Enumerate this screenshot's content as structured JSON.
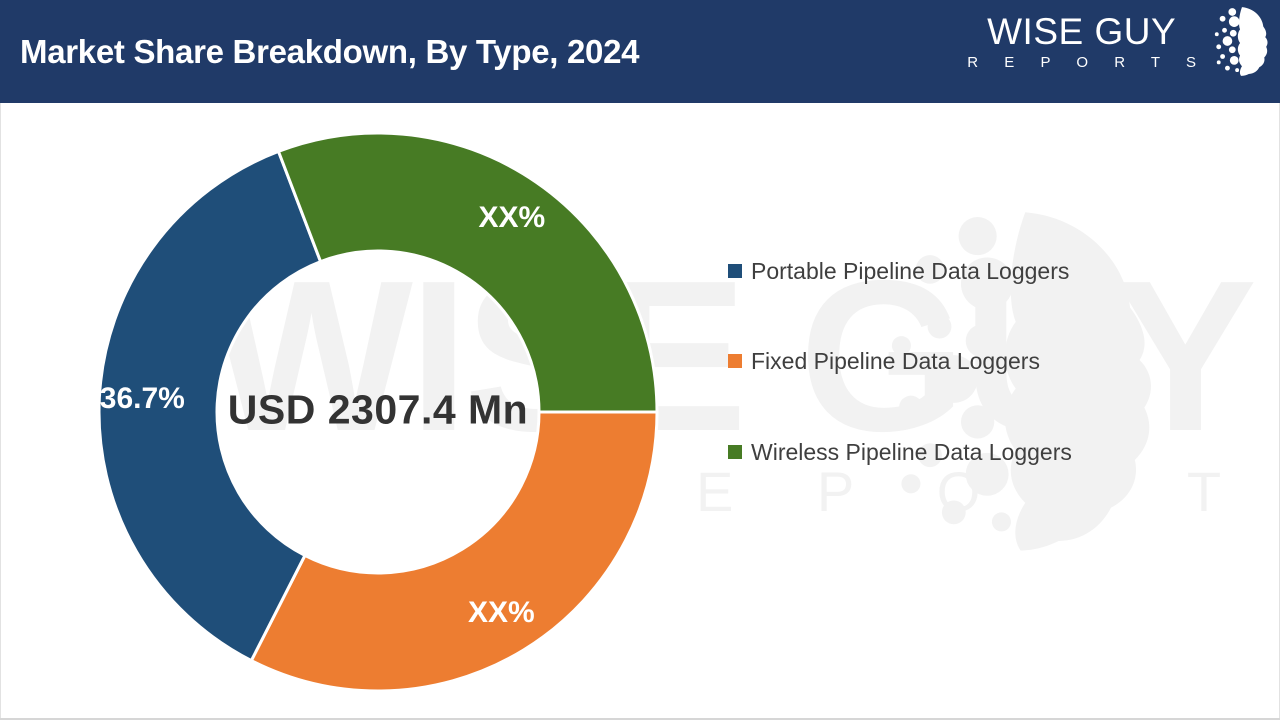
{
  "header": {
    "title": "Market Share Breakdown, By Type, 2024",
    "logo_line1": "WISE GUY",
    "logo_line2": "R E P O R T S"
  },
  "watermark": {
    "line1": "WISE GUY",
    "line2": "R E P O R T S"
  },
  "chart_data": {
    "type": "pie",
    "subtype": "donut",
    "title": "Market Share Breakdown, By Type, 2024",
    "center_label": "USD 2307.4 Mn",
    "legend_position": "right",
    "slices": [
      {
        "name": "Fixed Pipeline Data Loggers",
        "label": "XX%",
        "share_pct_est": 32.5,
        "start_deg": 0,
        "sweep_deg": 117.0,
        "color": "#ED7D31"
      },
      {
        "name": "Portable Pipeline Data Loggers",
        "label": "36.7%",
        "share_pct_est": 36.7,
        "start_deg": 117.0,
        "sweep_deg": 132.1,
        "color": "#1F4E79"
      },
      {
        "name": "Wireless Pipeline Data Loggers",
        "label": "XX%",
        "share_pct_est": 30.8,
        "start_deg": 249.1,
        "sweep_deg": 110.9,
        "color": "#477B24"
      }
    ],
    "legend": [
      {
        "label": "Portable Pipeline Data Loggers",
        "color": "#1F4E79"
      },
      {
        "label": "Fixed Pipeline Data Loggers",
        "color": "#ED7D31"
      },
      {
        "label": "Wireless Pipeline Data Loggers",
        "color": "#477B24"
      }
    ]
  },
  "colors": {
    "header_bg": "#203A68",
    "center_text": "#333333",
    "legend_text": "#3F3F3F",
    "slice_label": "#FFFFFF",
    "watermark": "#F2F2F2",
    "bottom_line": "#D6D6D6"
  }
}
